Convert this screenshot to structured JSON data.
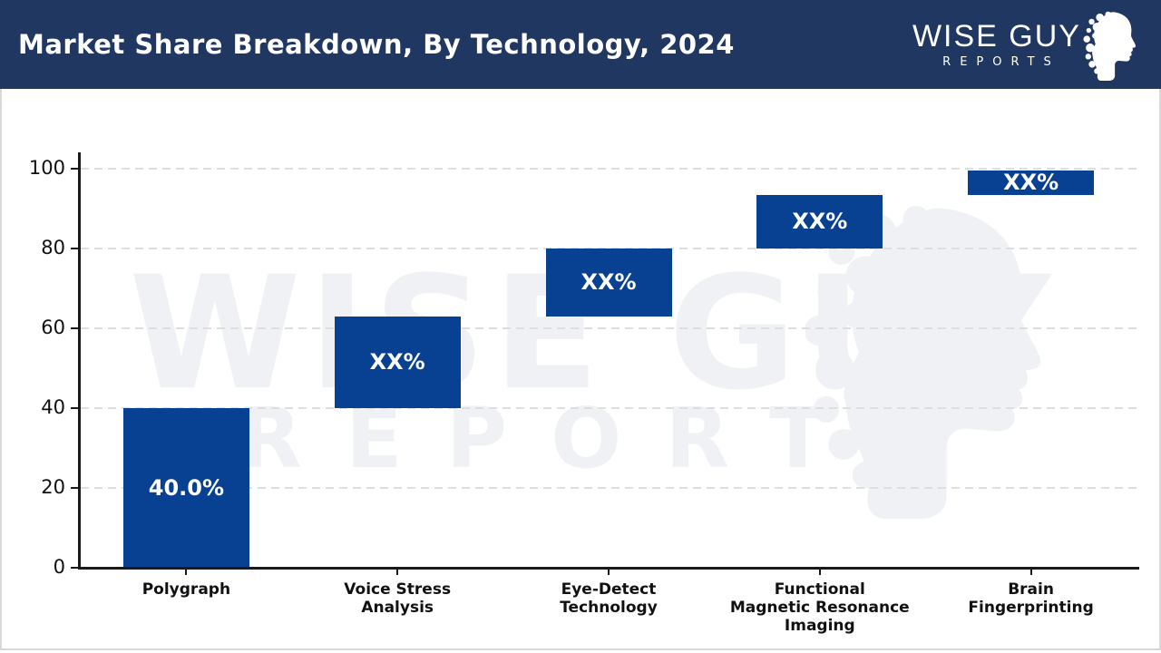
{
  "header": {
    "title": "Market Share Breakdown, By Technology, 2024",
    "bg_color": "#203761",
    "logo": {
      "line1": "WISE GUY",
      "line2": "REPORTS"
    }
  },
  "watermark": {
    "line1": "WISE GUY",
    "line2": "REPORTS"
  },
  "chart_data": {
    "type": "bar",
    "subtype": "waterfall",
    "title": "Market Share Breakdown, By Technology, 2024",
    "xlabel": "",
    "ylabel": "",
    "ylim": [
      0,
      100
    ],
    "yticks": [
      0,
      20,
      40,
      60,
      80,
      100
    ],
    "grid": "horizontal-dashed",
    "grid_color": "#dedede",
    "bar_color": "#084191",
    "label_color": "#ffffff",
    "legend": null,
    "categories": [
      "Polygraph",
      "Voice Stress\nAnalysis",
      "Eye-Detect\nTechnology",
      "Functional\nMagnetic Resonance\nImaging",
      "Brain\nFingerprinting"
    ],
    "bars": [
      {
        "category": "Polygraph",
        "start": 0,
        "end": 40,
        "label": "40.0%"
      },
      {
        "category": "Voice Stress Analysis",
        "start": 40,
        "end": 63,
        "label": "XX%"
      },
      {
        "category": "Eye-Detect Technology",
        "start": 63,
        "end": 80,
        "label": "XX%"
      },
      {
        "category": "Functional Magnetic Resonance Imaging",
        "start": 80,
        "end": 93.5,
        "label": "XX%"
      },
      {
        "category": "Brain Fingerprinting",
        "start": 93.5,
        "end": 99.5,
        "label": "XX%"
      }
    ]
  }
}
